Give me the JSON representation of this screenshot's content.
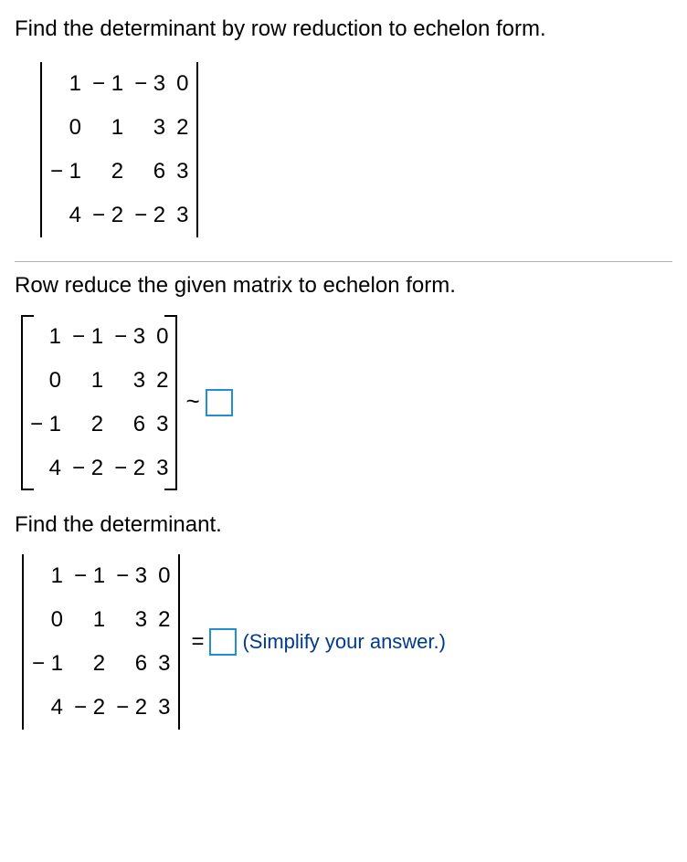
{
  "question": {
    "main_prompt": "Find the determinant by row reduction to echelon form.",
    "sub_prompt1": "Row reduce the given matrix to echelon form.",
    "sub_prompt2": "Find the determinant.",
    "hint_text": "(Simplify your answer.)",
    "tilde_symbol": "~",
    "equals_symbol": "="
  },
  "matrix": {
    "rows": [
      [
        "1",
        "− 1",
        "− 3",
        "0"
      ],
      [
        "0",
        "1",
        "3",
        "2"
      ],
      [
        "− 1",
        "2",
        "6",
        "3"
      ],
      [
        "4",
        "− 2",
        "− 2",
        "3"
      ]
    ],
    "n_rows": 4,
    "n_cols": 4,
    "cell_fontsize": 24,
    "col_align": "right",
    "bracket_colors": {
      "determinant": "#000000",
      "matrix": "#000000"
    }
  },
  "style": {
    "bg_color": "#ffffff",
    "text_color": "#000000",
    "hint_color": "#003a8c",
    "input_border_color": "#1f8fd6",
    "divider_color": "#b0b0b0",
    "font_family": "Arial",
    "base_fontsize": 22,
    "prompt_fontsize": 24
  },
  "inputs": {
    "echelon_matrix_answer": "",
    "determinant_answer": ""
  }
}
